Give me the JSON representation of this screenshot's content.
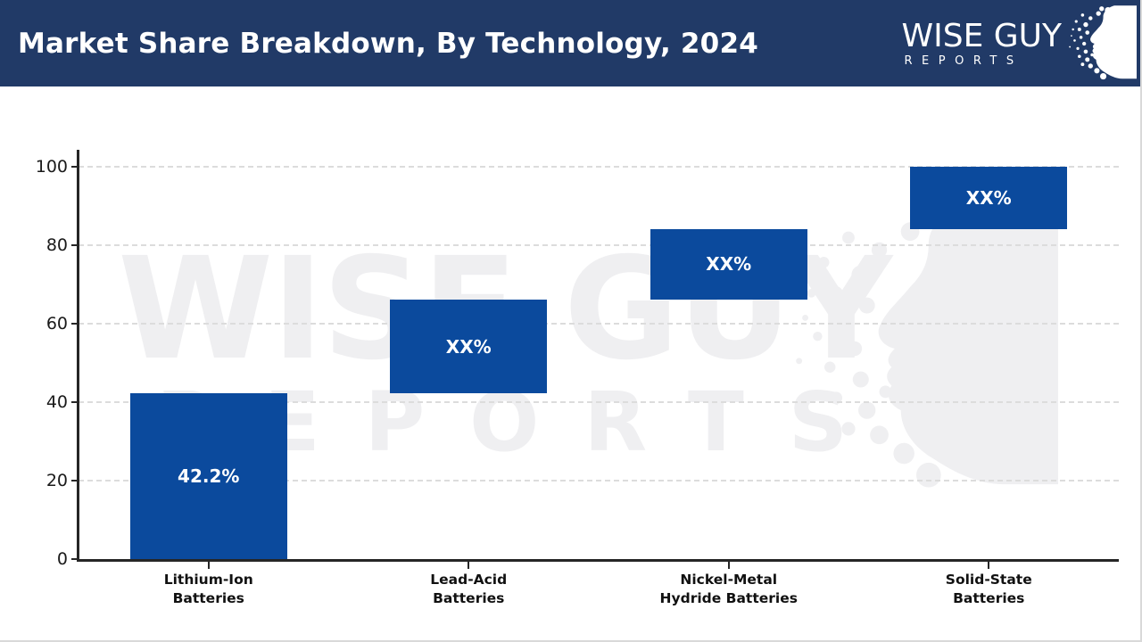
{
  "page": {
    "background": "#ffffff",
    "border_color": "#d9d9d9"
  },
  "header": {
    "background": "#213A67",
    "title": "Market Share Breakdown, By Technology, 2024",
    "logo": {
      "line1": "WISE GUY",
      "line2": "REPORTS"
    }
  },
  "watermark": {
    "line1": "WISE GUY",
    "line2": "REPORTS"
  },
  "chart_data": {
    "type": "bar",
    "subtype": "waterfall",
    "title": "Market Share Breakdown, By Technology, 2024",
    "categories": [
      [
        "Lithium-Ion",
        "Batteries"
      ],
      [
        "Lead-Acid",
        "Batteries"
      ],
      [
        "Nickel-Metal",
        "Hydride Batteries"
      ],
      [
        "Solid-State",
        "Batteries"
      ]
    ],
    "segments": [
      {
        "category": "Lithium-Ion Batteries",
        "start": 0,
        "end": 42.2,
        "value": 42.2,
        "label": "42.2%"
      },
      {
        "category": "Lead-Acid Batteries",
        "start": 42.2,
        "end": 66.2,
        "value": 24.0,
        "label": "XX%"
      },
      {
        "category": "Nickel-Metal Hydride Batteries",
        "start": 66.2,
        "end": 84.2,
        "value": 18.0,
        "label": "XX%"
      },
      {
        "category": "Solid-State Batteries",
        "start": 84.2,
        "end": 100,
        "value": 15.8,
        "label": "XX%"
      }
    ],
    "ylim": [
      0,
      100
    ],
    "yticks": [
      0,
      20,
      40,
      60,
      80,
      100
    ],
    "xlabel": "",
    "ylabel": "",
    "grid": "horizontal-dashed",
    "legend": "none",
    "colors": {
      "bar": "#0B4A9D",
      "bar_label": "#ffffff",
      "axis": "#262626",
      "grid": "#dcdcdc",
      "tick_label": "#1a1a1a",
      "header": "#213A67",
      "watermark": "#efeff1"
    }
  }
}
